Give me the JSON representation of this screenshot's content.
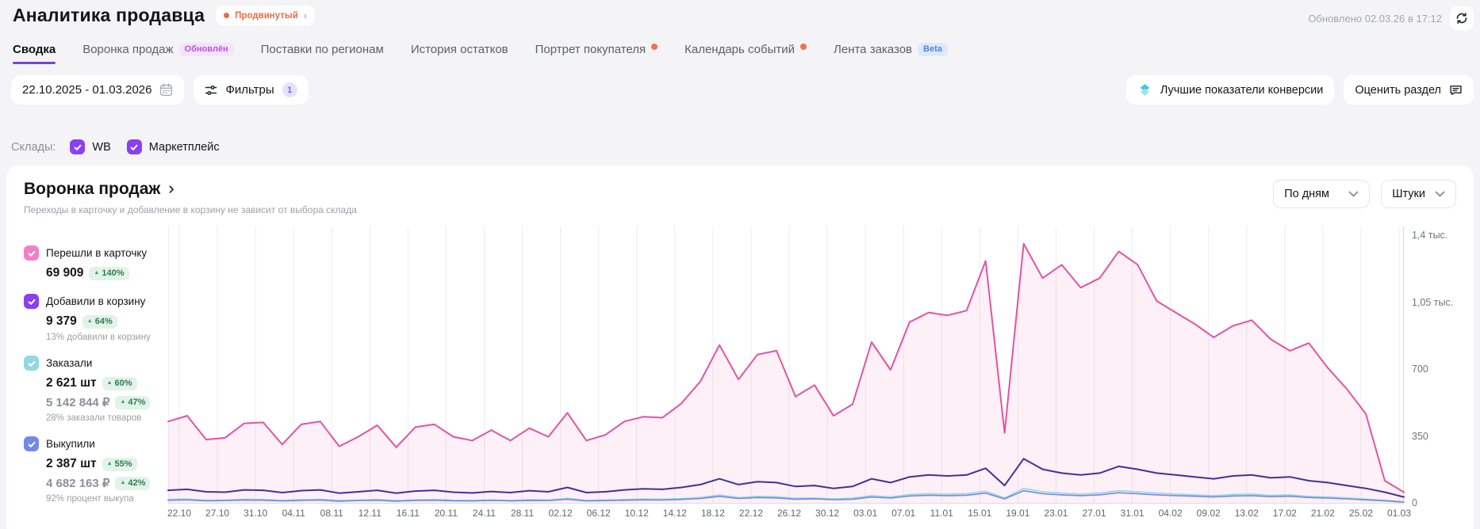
{
  "header": {
    "title": "Аналитика продавца",
    "plan_badge": "Продвинутый",
    "updated": "Обновлено 02.03.26 в 17:12"
  },
  "tabs": [
    {
      "label": "Сводка",
      "active": true
    },
    {
      "label": "Воронка продаж",
      "badge": "Обновлён",
      "badge_type": "updated"
    },
    {
      "label": "Поставки по регионам"
    },
    {
      "label": "История остатков"
    },
    {
      "label": "Портрет покупателя",
      "dot": true
    },
    {
      "label": "Календарь событий",
      "dot": true
    },
    {
      "label": "Лента заказов",
      "badge": "Beta",
      "badge_type": "beta"
    }
  ],
  "filters": {
    "date_range": "22.10.2025 - 01.03.2026",
    "filters_label": "Фильтры",
    "filters_count": "1",
    "best_conversion_label": "Лучшие показатели конверсии",
    "rate_section_label": "Оценить раздел"
  },
  "warehouses": {
    "label": "Склады:",
    "options": [
      {
        "label": "WB",
        "checked": true,
        "color": "#8a3ff2"
      },
      {
        "label": "Маркетплейс",
        "checked": true,
        "color": "#8a3ff2"
      }
    ]
  },
  "funnel": {
    "title": "Воронка продаж",
    "subtitle": "Переходы в карточку и добавление в корзину не зависит от выбора склада",
    "period_select": "По дням",
    "units_select": "Штуки",
    "legend": [
      {
        "label": "Перешли в карточку",
        "checkbox_color": "#f080c8",
        "value": "69 909",
        "trend": "140%"
      },
      {
        "label": "Добавили в корзину",
        "checkbox_color": "#8a3ff2",
        "value": "9 379",
        "trend": "64%",
        "note": "13% добавили в корзину"
      },
      {
        "label": "Заказали",
        "checkbox_color": "#93d8e2",
        "value": "2 621 шт",
        "trend": "60%",
        "money": "5 142 844 ₽",
        "money_trend": "47%",
        "note": "28% заказали товаров"
      },
      {
        "label": "Выкупили",
        "checkbox_color": "#7489e6",
        "value": "2 387 шт",
        "trend": "55%",
        "money": "4 682 163 ₽",
        "money_trend": "42%",
        "note": "92% процент выкупа"
      }
    ]
  },
  "chart_data": {
    "type": "line",
    "title": "Воронка продаж",
    "x_tick_labels": [
      "22.10",
      "27.10",
      "31.10",
      "04.11",
      "08.11",
      "12.11",
      "16.11",
      "20.11",
      "24.11",
      "28.11",
      "02.12",
      "06.12",
      "10.12",
      "14.12",
      "18.12",
      "22.12",
      "26.12",
      "30.12",
      "03.01",
      "07.01",
      "11.01",
      "15.01",
      "19.01",
      "23.01",
      "27.01",
      "31.01",
      "04.02",
      "09.02",
      "13.02",
      "17.02",
      "21.02",
      "25.02",
      "01.03"
    ],
    "y_ticks": [
      0,
      350,
      700,
      1050,
      1400
    ],
    "y_tick_labels": [
      "0",
      "350",
      "700",
      "1,05 тыс.",
      "1,4 тыс."
    ],
    "ylim": [
      0,
      1450
    ],
    "grid": "vertical",
    "legend_position": "left",
    "series": [
      {
        "name": "Перешли в карточку",
        "color": "#e453a2",
        "fill": "rgba(232,90,171,0.09)",
        "width": 2,
        "values": [
          430,
          460,
          335,
          345,
          420,
          425,
          310,
          415,
          430,
          300,
          350,
          410,
          295,
          400,
          415,
          350,
          330,
          385,
          330,
          395,
          350,
          475,
          330,
          360,
          430,
          455,
          450,
          525,
          640,
          830,
          650,
          780,
          800,
          560,
          620,
          460,
          520,
          845,
          700,
          950,
          1000,
          985,
          1010,
          1270,
          370,
          1360,
          1180,
          1250,
          1130,
          1180,
          1320,
          1250,
          1060,
          1000,
          940,
          870,
          930,
          960,
          860,
          800,
          840,
          710,
          600,
          470,
          120,
          60
        ]
      },
      {
        "name": "Добавили в корзину",
        "color": "#45309b",
        "width": 2,
        "values": [
          70,
          75,
          62,
          60,
          72,
          70,
          58,
          68,
          72,
          55,
          62,
          70,
          55,
          66,
          70,
          60,
          56,
          64,
          58,
          68,
          62,
          85,
          58,
          62,
          72,
          78,
          75,
          85,
          100,
          130,
          100,
          115,
          110,
          90,
          95,
          80,
          90,
          130,
          110,
          140,
          150,
          145,
          150,
          185,
          95,
          235,
          180,
          160,
          150,
          160,
          195,
          180,
          160,
          150,
          140,
          130,
          145,
          150,
          135,
          140,
          120,
          110,
          95,
          80,
          60,
          35
        ]
      },
      {
        "name": "Заказали",
        "color": "#93d8e2",
        "width": 1.6,
        "values": [
          22,
          24,
          18,
          19,
          23,
          22,
          17,
          21,
          23,
          16,
          19,
          22,
          16,
          20,
          22,
          18,
          17,
          20,
          17,
          21,
          19,
          28,
          17,
          19,
          22,
          24,
          23,
          27,
          32,
          45,
          32,
          38,
          36,
          28,
          30,
          25,
          28,
          42,
          35,
          48,
          52,
          50,
          52,
          65,
          30,
          80,
          62,
          55,
          50,
          55,
          68,
          62,
          55,
          50,
          46,
          42,
          48,
          50,
          44,
          46,
          38,
          35,
          30,
          24,
          18,
          10
        ]
      },
      {
        "name": "Выкупили",
        "color": "#7489e6",
        "width": 1.6,
        "values": [
          18,
          20,
          15,
          16,
          19,
          18,
          14,
          17,
          19,
          13,
          16,
          18,
          13,
          17,
          18,
          15,
          14,
          17,
          14,
          17,
          16,
          23,
          14,
          16,
          18,
          20,
          19,
          22,
          27,
          38,
          27,
          32,
          30,
          23,
          25,
          21,
          23,
          35,
          29,
          40,
          44,
          42,
          44,
          55,
          25,
          68,
          52,
          46,
          42,
          46,
          57,
          52,
          46,
          42,
          39,
          35,
          40,
          42,
          37,
          39,
          32,
          29,
          25,
          20,
          15,
          8
        ]
      }
    ]
  }
}
